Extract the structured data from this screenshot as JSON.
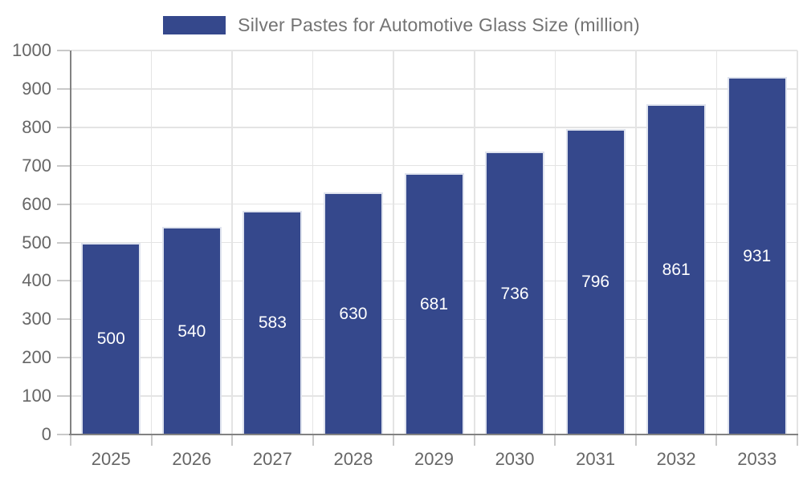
{
  "legend": {
    "label": "Silver Pastes for Automotive Glass Size (million)"
  },
  "chart_data": {
    "type": "bar",
    "title": "Silver Pastes for Automotive Glass Size (million)",
    "categories": [
      "2025",
      "2026",
      "2027",
      "2028",
      "2029",
      "2030",
      "2031",
      "2032",
      "2033"
    ],
    "series": [
      {
        "name": "Silver Pastes for Automotive Glass Size (million)",
        "values": [
          500,
          540,
          583,
          630,
          681,
          736,
          796,
          861,
          931
        ]
      }
    ],
    "value_labels_shown": true,
    "xlabel": "",
    "ylabel": "",
    "ylim": [
      0,
      1000
    ],
    "yticks": [
      0,
      100,
      200,
      300,
      400,
      500,
      600,
      700,
      800,
      900,
      1000
    ],
    "grid": true,
    "legend_position": "top",
    "colors": {
      "bar_fill": "#35488c",
      "bar_border": "#dfe3ee",
      "value_label": "#ffffff",
      "grid_line": "#e4e4e4",
      "axis_line": "#828282",
      "tick_mark": "#c9c9c9",
      "tick_label": "#666666",
      "legend_text": "#737373",
      "background": "#ffffff"
    }
  }
}
